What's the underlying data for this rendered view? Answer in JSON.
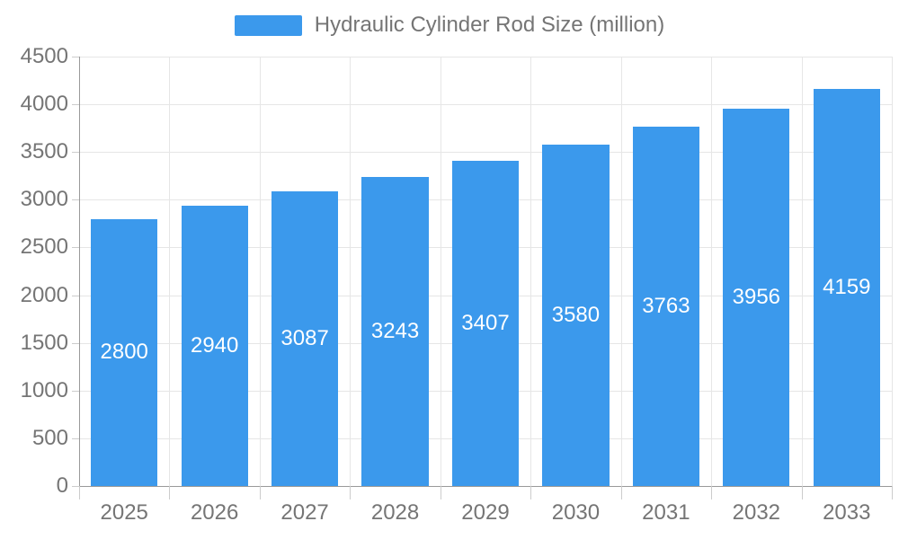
{
  "legend": {
    "label": "Hydraulic Cylinder Rod Size (million)"
  },
  "chart_data": {
    "type": "bar",
    "title": "Hydraulic Cylinder Rod Size (million)",
    "categories": [
      "2025",
      "2026",
      "2027",
      "2028",
      "2029",
      "2030",
      "2031",
      "2032",
      "2033"
    ],
    "values": [
      2800,
      2940,
      3087,
      3243,
      3407,
      3580,
      3763,
      3956,
      4159
    ],
    "xlabel": "",
    "ylabel": "",
    "ylim": [
      0,
      4500
    ],
    "y_tick_step": 500,
    "y_tick_labels": [
      "0",
      "500",
      "1000",
      "1500",
      "2000",
      "2500",
      "3000",
      "3500",
      "4000",
      "4500"
    ],
    "grid": true,
    "legend_position": "top",
    "bar_color": "#3b99ec",
    "value_label_color": "#ffffff",
    "axis_text_color": "#757575",
    "axis_line_color": "#999999",
    "gridline_color": "#e6e6e6"
  }
}
